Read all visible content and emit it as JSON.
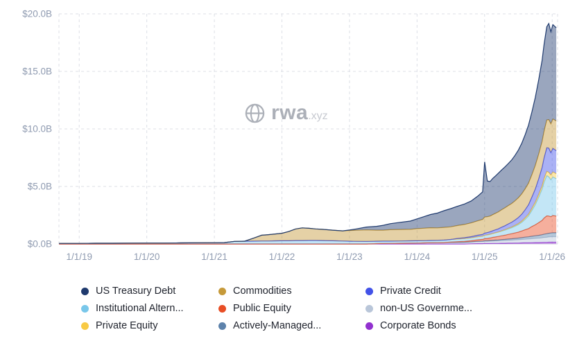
{
  "watermark": {
    "brand": "rwa",
    "suffix": ".xyz"
  },
  "chart_data": {
    "type": "area",
    "stacked": true,
    "title": "",
    "xlabel": "",
    "ylabel": "",
    "value_unit": "USD billions",
    "xlim": [
      2018.7,
      2026.08
    ],
    "ylim": [
      0,
      20
    ],
    "grid": true,
    "legend_position": "bottom",
    "y_ticks": [
      {
        "v": 0,
        "label": "$0.0B"
      },
      {
        "v": 5,
        "label": "$5.0B"
      },
      {
        "v": 10,
        "label": "$10.0B"
      },
      {
        "v": 15,
        "label": "$15.0B"
      },
      {
        "v": 20,
        "label": "$20.0B"
      }
    ],
    "x_ticks": [
      {
        "t": 2019,
        "label": "1/1/19"
      },
      {
        "t": 2020,
        "label": "1/1/20"
      },
      {
        "t": 2021,
        "label": "1/1/21"
      },
      {
        "t": 2022,
        "label": "1/1/22"
      },
      {
        "t": 2023,
        "label": "1/1/23"
      },
      {
        "t": 2024,
        "label": "1/1/24"
      },
      {
        "t": 2025,
        "label": "1/1/25"
      },
      {
        "t": 2026,
        "label": "1/1/26"
      }
    ],
    "x": [
      2018.7,
      2019.0,
      2019.25,
      2019.5,
      2019.75,
      2020.0,
      2020.25,
      2020.5,
      2020.75,
      2021.0,
      2021.15,
      2021.3,
      2021.45,
      2021.6,
      2021.7,
      2021.8,
      2021.9,
      2022.0,
      2022.1,
      2022.2,
      2022.3,
      2022.4,
      2022.5,
      2022.6,
      2022.75,
      2022.9,
      2023.0,
      2023.1,
      2023.25,
      2023.4,
      2023.5,
      2023.6,
      2023.75,
      2023.9,
      2024.0,
      2024.1,
      2024.2,
      2024.3,
      2024.4,
      2024.5,
      2024.6,
      2024.7,
      2024.8,
      2024.9,
      2024.97,
      2025.0,
      2025.04,
      2025.08,
      2025.12,
      2025.16,
      2025.2,
      2025.25,
      2025.3,
      2025.35,
      2025.4,
      2025.45,
      2025.5,
      2025.55,
      2025.6,
      2025.65,
      2025.7,
      2025.75,
      2025.8,
      2025.85,
      2025.88,
      2025.92,
      2025.95,
      2025.98,
      2026.01,
      2026.06
    ],
    "series": [
      {
        "name": "corporate-bonds",
        "label": "Corporate Bonds",
        "color": "#9231cf",
        "values": [
          0,
          0,
          0,
          0,
          0,
          0,
          0,
          0,
          0,
          0,
          0,
          0,
          0,
          0,
          0,
          0,
          0,
          0,
          0,
          0,
          0,
          0,
          0,
          0,
          0,
          0,
          0,
          0,
          0,
          0,
          0,
          0,
          0,
          0,
          0,
          0,
          0,
          0,
          0,
          0,
          0,
          0,
          0.02,
          0.03,
          0.03,
          0.04,
          0.04,
          0.04,
          0.05,
          0.05,
          0.05,
          0.06,
          0.06,
          0.07,
          0.07,
          0.08,
          0.08,
          0.09,
          0.1,
          0.1,
          0.11,
          0.12,
          0.12,
          0.13,
          0.14,
          0.14,
          0.15,
          0.15,
          0.15,
          0.15
        ]
      },
      {
        "name": "non-us-government-debt",
        "label": "non-US Governme...",
        "color": "#b9c6d9",
        "values": [
          0,
          0,
          0,
          0,
          0,
          0,
          0,
          0,
          0,
          0,
          0,
          0,
          0,
          0,
          0,
          0,
          0,
          0,
          0,
          0,
          0,
          0,
          0,
          0,
          0,
          0,
          0,
          0,
          0,
          0.03,
          0.04,
          0.05,
          0.06,
          0.07,
          0.08,
          0.09,
          0.1,
          0.11,
          0.12,
          0.13,
          0.14,
          0.15,
          0.16,
          0.17,
          0.18,
          0.19,
          0.19,
          0.2,
          0.2,
          0.21,
          0.22,
          0.23,
          0.24,
          0.25,
          0.26,
          0.27,
          0.28,
          0.3,
          0.31,
          0.33,
          0.35,
          0.36,
          0.38,
          0.4,
          0.42,
          0.44,
          0.46,
          0.47,
          0.48,
          0.48
        ]
      },
      {
        "name": "actively-managed-funds",
        "label": "Actively-Managed...",
        "color": "#5d82ab",
        "values": [
          0,
          0,
          0,
          0,
          0,
          0,
          0,
          0,
          0,
          0,
          0,
          0,
          0,
          0,
          0,
          0,
          0,
          0,
          0,
          0,
          0,
          0,
          0,
          0,
          0,
          0,
          0,
          0,
          0,
          0,
          0,
          0,
          0,
          0,
          0,
          0,
          0,
          0,
          0,
          0,
          0,
          0,
          0,
          0.03,
          0.04,
          0.05,
          0.05,
          0.06,
          0.07,
          0.08,
          0.08,
          0.09,
          0.1,
          0.11,
          0.12,
          0.13,
          0.15,
          0.16,
          0.18,
          0.19,
          0.21,
          0.23,
          0.25,
          0.27,
          0.29,
          0.31,
          0.32,
          0.33,
          0.34,
          0.34
        ]
      },
      {
        "name": "public-equity",
        "label": "Public Equity",
        "color": "#e84e25",
        "values": [
          0,
          0,
          0,
          0,
          0,
          0,
          0,
          0,
          0,
          0,
          0,
          0,
          0,
          0,
          0,
          0,
          0,
          0,
          0,
          0,
          0,
          0,
          0,
          0,
          0,
          0,
          0,
          0,
          0,
          0,
          0,
          0,
          0,
          0,
          0,
          0,
          0,
          0,
          0,
          0.04,
          0.06,
          0.08,
          0.1,
          0.13,
          0.15,
          0.18,
          0.2,
          0.22,
          0.25,
          0.27,
          0.3,
          0.33,
          0.36,
          0.4,
          0.44,
          0.48,
          0.52,
          0.58,
          0.65,
          0.72,
          0.85,
          0.95,
          1.1,
          1.25,
          1.4,
          1.55,
          1.5,
          1.42,
          1.5,
          1.45
        ]
      },
      {
        "name": "institutional-alternative-funds",
        "label": "Institutional Altern...",
        "color": "#79c7ea",
        "values": [
          0.05,
          0.05,
          0.06,
          0.06,
          0.07,
          0.08,
          0.08,
          0.09,
          0.1,
          0.11,
          0.12,
          0.22,
          0.24,
          0.25,
          0.26,
          0.26,
          0.27,
          0.28,
          0.28,
          0.3,
          0.3,
          0.31,
          0.31,
          0.3,
          0.28,
          0.26,
          0.24,
          0.23,
          0.22,
          0.21,
          0.21,
          0.2,
          0.2,
          0.2,
          0.2,
          0.2,
          0.21,
          0.21,
          0.22,
          0.22,
          0.23,
          0.24,
          0.25,
          0.27,
          0.28,
          0.3,
          0.31,
          0.32,
          0.34,
          0.36,
          0.38,
          0.4,
          0.44,
          0.48,
          0.52,
          0.58,
          0.65,
          0.75,
          0.9,
          1.1,
          1.4,
          1.75,
          2.2,
          2.7,
          3.1,
          3.5,
          3.4,
          3.2,
          3.35,
          3.25
        ]
      },
      {
        "name": "private-equity",
        "label": "Private Equity",
        "color": "#f8ca45",
        "values": [
          0,
          0,
          0,
          0,
          0,
          0,
          0,
          0,
          0,
          0,
          0,
          0,
          0,
          0,
          0,
          0,
          0,
          0,
          0,
          0,
          0,
          0,
          0,
          0,
          0,
          0,
          0,
          0,
          0,
          0,
          0,
          0,
          0,
          0,
          0,
          0,
          0,
          0,
          0,
          0,
          0,
          0,
          0,
          0,
          0,
          0,
          0,
          0,
          0,
          0,
          0,
          0.03,
          0.04,
          0.05,
          0.06,
          0.07,
          0.09,
          0.11,
          0.13,
          0.15,
          0.18,
          0.21,
          0.25,
          0.29,
          0.33,
          0.37,
          0.4,
          0.42,
          0.44,
          0.44
        ]
      },
      {
        "name": "private-credit",
        "label": "Private Credit",
        "color": "#4252e8",
        "values": [
          0,
          0,
          0,
          0,
          0,
          0,
          0,
          0,
          0,
          0,
          0,
          0,
          0,
          0,
          0,
          0,
          0,
          0,
          0,
          0,
          0,
          0,
          0,
          0,
          0,
          0,
          0,
          0,
          0,
          0,
          0,
          0,
          0,
          0,
          0,
          0,
          0,
          0,
          0,
          0,
          0.05,
          0.07,
          0.1,
          0.13,
          0.15,
          0.18,
          0.2,
          0.22,
          0.24,
          0.26,
          0.28,
          0.31,
          0.34,
          0.38,
          0.42,
          0.47,
          0.53,
          0.6,
          0.7,
          0.82,
          0.98,
          1.15,
          1.35,
          1.6,
          1.8,
          2.05,
          2.1,
          1.95,
          2.05,
          2.0
        ]
      },
      {
        "name": "commodities",
        "label": "Commodities",
        "color": "#c69a3a",
        "values": [
          0,
          0,
          0,
          0,
          0,
          0,
          0,
          0,
          0,
          0,
          0,
          0,
          0,
          0.3,
          0.5,
          0.55,
          0.6,
          0.65,
          0.8,
          1.0,
          1.1,
          1.05,
          1.0,
          0.97,
          0.92,
          0.88,
          0.92,
          0.96,
          1.0,
          0.96,
          0.95,
          0.99,
          1.0,
          1.0,
          1.05,
          1.08,
          1.1,
          1.08,
          1.1,
          1.1,
          1.12,
          1.15,
          1.2,
          1.25,
          1.3,
          1.4,
          1.38,
          1.36,
          1.4,
          1.43,
          1.47,
          1.52,
          1.56,
          1.6,
          1.63,
          1.67,
          1.72,
          1.77,
          1.82,
          1.88,
          1.95,
          2.05,
          2.15,
          2.25,
          2.32,
          2.42,
          2.48,
          2.5,
          2.55,
          2.58
        ]
      },
      {
        "name": "us-treasury-debt",
        "label": "US Treasury Debt",
        "color": "#1f3a6e",
        "values": [
          0,
          0,
          0,
          0,
          0,
          0,
          0,
          0,
          0,
          0,
          0,
          0,
          0,
          0,
          0,
          0,
          0,
          0,
          0,
          0,
          0,
          0,
          0,
          0,
          0,
          0,
          0.05,
          0.12,
          0.25,
          0.33,
          0.42,
          0.52,
          0.62,
          0.72,
          0.85,
          1.0,
          1.15,
          1.28,
          1.45,
          1.58,
          1.68,
          1.78,
          1.9,
          2.15,
          2.4,
          4.8,
          3.1,
          3.0,
          3.15,
          3.25,
          3.35,
          3.45,
          3.55,
          3.65,
          3.78,
          3.95,
          4.15,
          4.4,
          4.7,
          5.05,
          5.45,
          5.9,
          6.45,
          7.05,
          7.55,
          8.1,
          8.35,
          8.0,
          8.2,
          8.1
        ]
      }
    ]
  },
  "legend": {
    "items": [
      {
        "label": "US Treasury Debt",
        "color": "#1f3a6e",
        "series": "us-treasury-debt"
      },
      {
        "label": "Commodities",
        "color": "#c69a3a",
        "series": "commodities"
      },
      {
        "label": "Private Credit",
        "color": "#4252e8",
        "series": "private-credit"
      },
      {
        "label": "Institutional Altern...",
        "color": "#79c7ea",
        "series": "institutional-alternative-funds"
      },
      {
        "label": "Public Equity",
        "color": "#e84e25",
        "series": "public-equity"
      },
      {
        "label": "non-US Governme...",
        "color": "#b9c6d9",
        "series": "non-us-government-debt"
      },
      {
        "label": "Private Equity",
        "color": "#f8ca45",
        "series": "private-equity"
      },
      {
        "label": "Actively-Managed...",
        "color": "#5d82ab",
        "series": "actively-managed-funds"
      },
      {
        "label": "Corporate Bonds",
        "color": "#9231cf",
        "series": "corporate-bonds"
      }
    ]
  },
  "colors": {
    "grid": "#dcdfe6",
    "axis_label": "#8e9ab0",
    "watermark": "#acb0b8",
    "background": "#ffffff"
  }
}
